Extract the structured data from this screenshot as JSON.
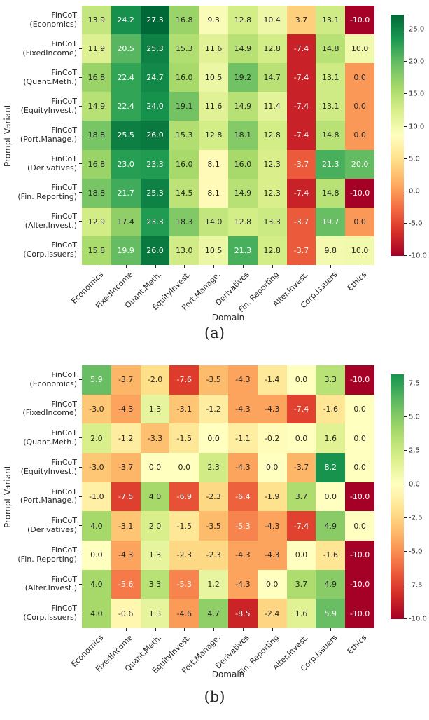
{
  "figure": {
    "background": "#ffffff",
    "text_color": "#262626",
    "annotation_light_text": "#ffffff"
  },
  "colormap": {
    "name": "RdYlGn",
    "anchors_rgb": [
      [
        165,
        0,
        38
      ],
      [
        215,
        48,
        39
      ],
      [
        244,
        109,
        67
      ],
      [
        253,
        174,
        97
      ],
      [
        254,
        224,
        139
      ],
      [
        255,
        255,
        191
      ],
      [
        217,
        239,
        139
      ],
      [
        166,
        217,
        106
      ],
      [
        102,
        189,
        99
      ],
      [
        26,
        152,
        80
      ],
      [
        0,
        104,
        55
      ]
    ]
  },
  "chart_data": [
    {
      "type": "heatmap",
      "caption": "(a)",
      "xlabel": "Domain",
      "ylabel": "Prompt Variant",
      "legend_position": "right-colorbar",
      "rows": [
        "FinCoT\n(Economics)",
        "FinCoT\n(FixedIncome)",
        "FinCoT\n(Quant.Meth.)",
        "FinCoT\n(EquityInvest.)",
        "FinCoT\n(Port.Manage.)",
        "FinCoT\n(Derivatives)",
        "FinCoT\n(Fin. Reporting)",
        "FinCoT\n(Alter.Invest.)",
        "FinCoT\n(Corp.Issuers)"
      ],
      "columns": [
        "Economics",
        "FixedIncome",
        "Quant.Meth.",
        "EquityInvest.",
        "Port.Manage.",
        "Derivatives",
        "Fin. Reporting",
        "Alter.Invest.",
        "Corp.Issuers",
        "Ethics"
      ],
      "values": [
        [
          13.9,
          24.2,
          27.3,
          16.8,
          9.3,
          12.8,
          10.4,
          3.7,
          13.1,
          -10.0
        ],
        [
          11.9,
          20.5,
          25.3,
          15.3,
          11.6,
          14.9,
          12.8,
          -7.4,
          14.8,
          10.0
        ],
        [
          16.8,
          22.4,
          24.7,
          16.0,
          10.5,
          19.2,
          14.7,
          -7.4,
          13.1,
          0.0
        ],
        [
          14.9,
          22.4,
          24.0,
          19.1,
          11.6,
          14.9,
          11.4,
          -7.4,
          13.1,
          0.0
        ],
        [
          18.8,
          25.5,
          26.0,
          15.3,
          12.8,
          18.1,
          12.8,
          -7.4,
          14.8,
          0.0
        ],
        [
          16.8,
          23.0,
          23.3,
          16.0,
          8.1,
          16.0,
          12.3,
          -3.7,
          21.3,
          20.0
        ],
        [
          18.8,
          21.7,
          25.3,
          14.5,
          8.1,
          14.9,
          12.3,
          -7.4,
          14.8,
          -10.0
        ],
        [
          12.9,
          17.4,
          23.3,
          18.3,
          14.0,
          12.8,
          13.3,
          -3.7,
          19.7,
          0.0
        ],
        [
          15.8,
          19.9,
          26.0,
          13.0,
          10.5,
          21.3,
          12.8,
          -3.7,
          9.8,
          10.0
        ]
      ],
      "color_scale": {
        "vmin": -10.0,
        "vmax": 27.3
      },
      "colorbar": {
        "vmin": -10.0,
        "vmax": 27.3,
        "ticks": [
          25.0,
          20.0,
          15.0,
          10.0,
          5.0,
          0.0,
          -5.0,
          -10.0
        ]
      }
    },
    {
      "type": "heatmap",
      "caption": "(b)",
      "xlabel": "Domain",
      "ylabel": "Prompt Variant",
      "legend_position": "right-colorbar",
      "rows": [
        "FinCoT\n(Economics)",
        "FinCoT\n(FixedIncome)",
        "FinCoT\n(Quant.Meth.)",
        "FinCoT\n(EquityInvest.)",
        "FinCoT\n(Port.Manage.)",
        "FinCoT\n(Derivatives)",
        "FinCoT\n(Fin. Reporting)",
        "FinCoT\n(Alter.Invest.)",
        "FinCoT\n(Corp.Issuers)"
      ],
      "columns": [
        "Economics",
        "FixedIncome",
        "Quant.Meth.",
        "EquityInvest.",
        "Port.Manage.",
        "Derivatives",
        "Fin. Reporting",
        "Alter.Invest.",
        "Corp.Issuers",
        "Ethics"
      ],
      "values": [
        [
          5.9,
          -3.7,
          -2.0,
          -7.6,
          -3.5,
          -4.3,
          -1.4,
          0.0,
          3.3,
          -10.0
        ],
        [
          -3.0,
          -4.3,
          1.3,
          -3.1,
          -1.2,
          -4.3,
          -4.3,
          -7.4,
          -1.6,
          0.0
        ],
        [
          2.0,
          -1.2,
          -3.3,
          -1.5,
          0.0,
          -1.1,
          -0.2,
          0.0,
          1.6,
          0.0
        ],
        [
          -3.0,
          -3.7,
          0.0,
          0.0,
          2.3,
          -4.3,
          0.0,
          -3.7,
          8.2,
          0.0
        ],
        [
          -1.0,
          -7.5,
          4.0,
          -6.9,
          -2.3,
          -6.4,
          -1.9,
          3.7,
          0.0,
          -10.0
        ],
        [
          4.0,
          -3.1,
          2.0,
          -1.5,
          -3.5,
          -5.3,
          -4.3,
          -7.4,
          4.9,
          0.0
        ],
        [
          0.0,
          -4.3,
          1.3,
          -2.3,
          -2.3,
          -4.3,
          -4.3,
          0.0,
          -1.6,
          -10.0
        ],
        [
          4.0,
          -5.6,
          3.3,
          -5.3,
          1.2,
          -4.3,
          0.0,
          3.7,
          4.9,
          -10.0
        ],
        [
          4.0,
          -0.6,
          1.3,
          -4.6,
          4.7,
          -8.5,
          -2.4,
          1.6,
          5.9,
          -10.0
        ]
      ],
      "color_scale": {
        "vmin": -10.0,
        "vmax": 10.0,
        "center": 0.0
      },
      "colorbar": {
        "vmin": -10.0,
        "vmax": 8.2,
        "ticks": [
          7.5,
          5.0,
          2.5,
          0.0,
          -2.5,
          -5.0,
          -7.5,
          -10.0
        ]
      }
    }
  ]
}
